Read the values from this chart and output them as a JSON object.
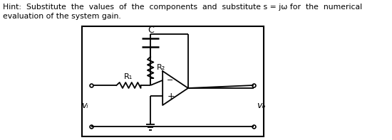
{
  "text_hint_line1": "Hint:  Substitute  the  values  of  the  components  and  substitute s = jω for  the  numerical",
  "text_hint_line2": "evaluation of the system gain.",
  "label_C": "C",
  "label_R2": "R₂",
  "label_R1": "R₁",
  "label_Vi": "vᵢ",
  "label_Vo": "vₒ",
  "bg_color": "#ffffff",
  "box_color": "#000000",
  "figsize": [
    5.5,
    1.97
  ],
  "dpi": 100
}
